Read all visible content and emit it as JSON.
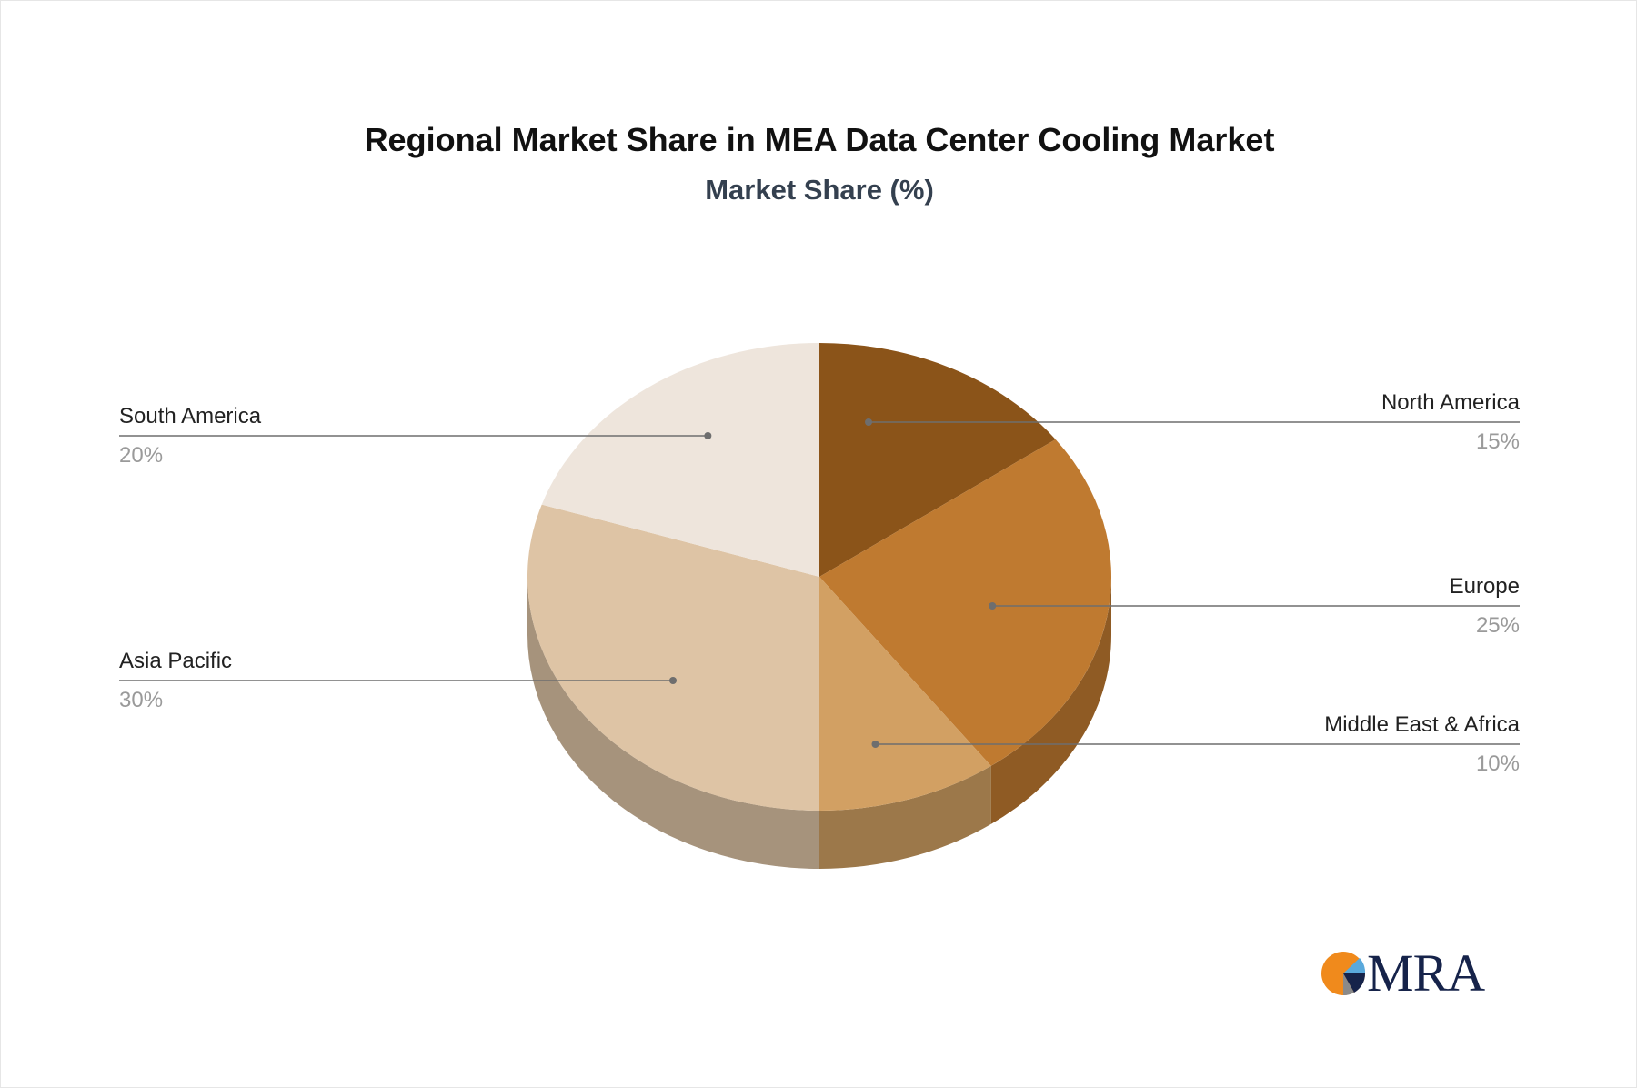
{
  "chart_data": {
    "type": "pie",
    "title": "Regional Market Share in MEA Data Center Cooling Market",
    "subtitle": "Market Share (%)",
    "slices": [
      {
        "label": "North America",
        "value": 15,
        "value_label": "15%",
        "color": "#8b5419",
        "side_color": "#6e4214"
      },
      {
        "label": "Europe",
        "value": 25,
        "value_label": "25%",
        "color": "#bf7a30",
        "side_color": "#8f5b24"
      },
      {
        "label": "Middle East & Africa",
        "value": 10,
        "value_label": "10%",
        "color": "#d2a063",
        "side_color": "#9c784a"
      },
      {
        "label": "Asia Pacific",
        "value": 30,
        "value_label": "30%",
        "color": "#dec4a5",
        "side_color": "#a6937c"
      },
      {
        "label": "South America",
        "value": 20,
        "value_label": "20%",
        "color": "#eee5dc",
        "side_color": "#b3aca5"
      }
    ]
  },
  "logo": {
    "text": "MRA",
    "colors": {
      "orange": "#f08a1c",
      "navy": "#16234a",
      "blue": "#5aa9dc"
    }
  }
}
